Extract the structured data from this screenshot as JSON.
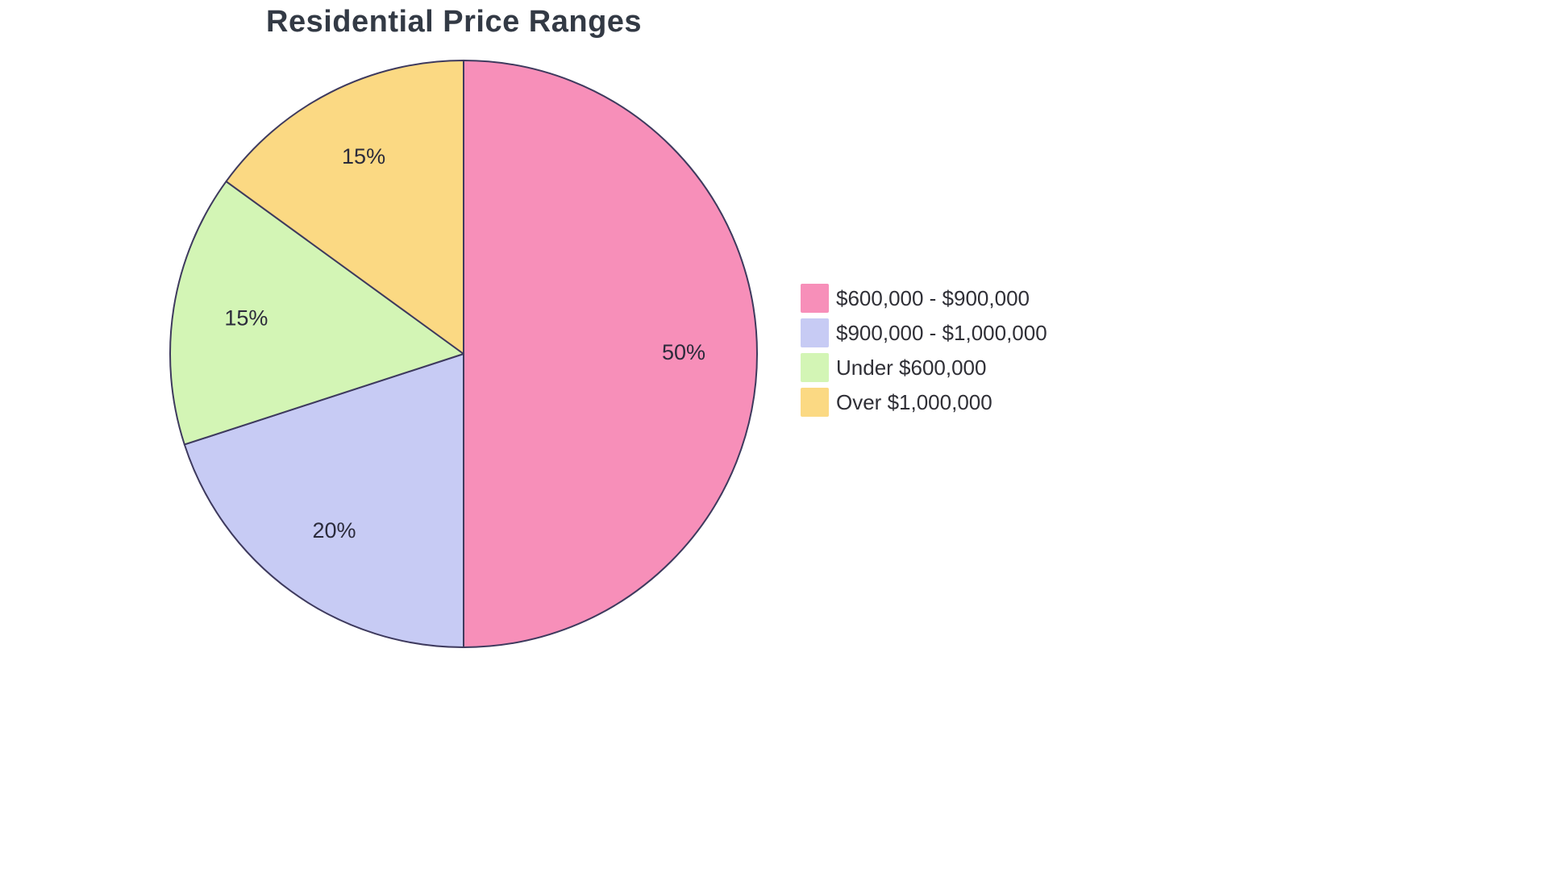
{
  "title": "Residential Price Ranges",
  "chart_data": {
    "type": "pie",
    "title": "Residential Price Ranges",
    "labels": [
      "$600,000 - $900,000",
      "$900,000 - $1,000,000",
      "Under $600,000",
      "Over $1,000,000"
    ],
    "values": [
      50,
      20,
      15,
      15
    ],
    "value_labels": [
      "50%",
      "20%",
      "15%",
      "15%"
    ],
    "colors": [
      "#F78FB9",
      "#C7CBF4",
      "#D3F5B5",
      "#FBD983"
    ],
    "stroke_color": "#3E3A5E",
    "label_color": "#2B2B3B",
    "start_angle": "top",
    "direction": "clockwise",
    "legend_position": "right",
    "grid": false
  }
}
